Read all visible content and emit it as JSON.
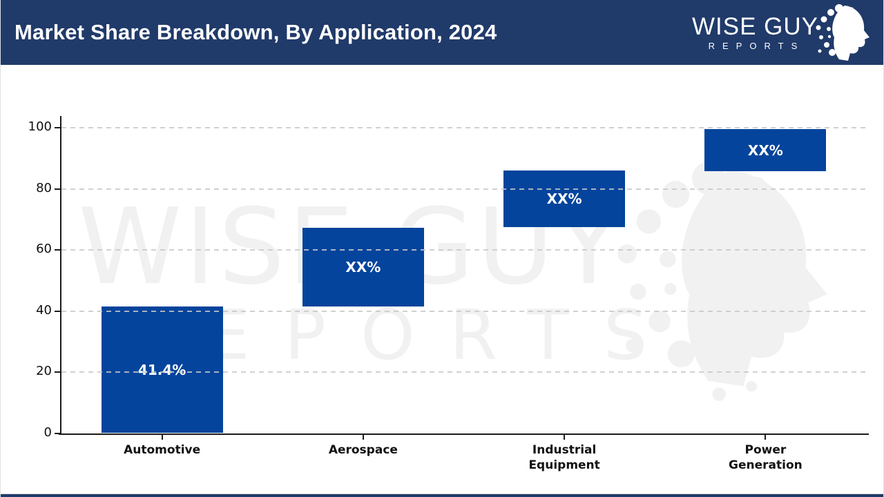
{
  "header": {
    "title": "Market Share Breakdown, By Application, 2024",
    "bg_color": "#203a6a",
    "logo": {
      "line1": "WISE GUY",
      "line2": "REPORTS"
    }
  },
  "watermark": {
    "line1": "WISE GUY",
    "line2": "REPORTS"
  },
  "chart_data": {
    "type": "bar",
    "variant": "waterfall",
    "title": "Market Share Breakdown, By Application, 2024",
    "categories": [
      "Automotive",
      "Aerospace",
      "Industrial Equipment",
      "Power Generation"
    ],
    "segments": [
      {
        "category": "Automotive",
        "start": 0,
        "end": 41.4,
        "label": "41.4%"
      },
      {
        "category": "Aerospace",
        "start": 41.4,
        "end": 67.2,
        "label": "XX%"
      },
      {
        "category": "Industrial Equipment",
        "start": 67.5,
        "end": 86.0,
        "label": "XX%"
      },
      {
        "category": "Power Generation",
        "start": 85.8,
        "end": 99.5,
        "label": "XX%"
      }
    ],
    "xlabel": "",
    "ylabel": "",
    "y_ticks": [
      0,
      20,
      40,
      60,
      80,
      100
    ],
    "ylim": [
      0,
      104
    ],
    "grid": true,
    "gridline_style": "dashed",
    "legend": false,
    "bar_color": "#04449c",
    "bar_label_color": "#ffffff",
    "grid_color": "#c8c8c8",
    "axis_color": "#1a1a1a",
    "watermark_color": "#f1f1f1"
  }
}
